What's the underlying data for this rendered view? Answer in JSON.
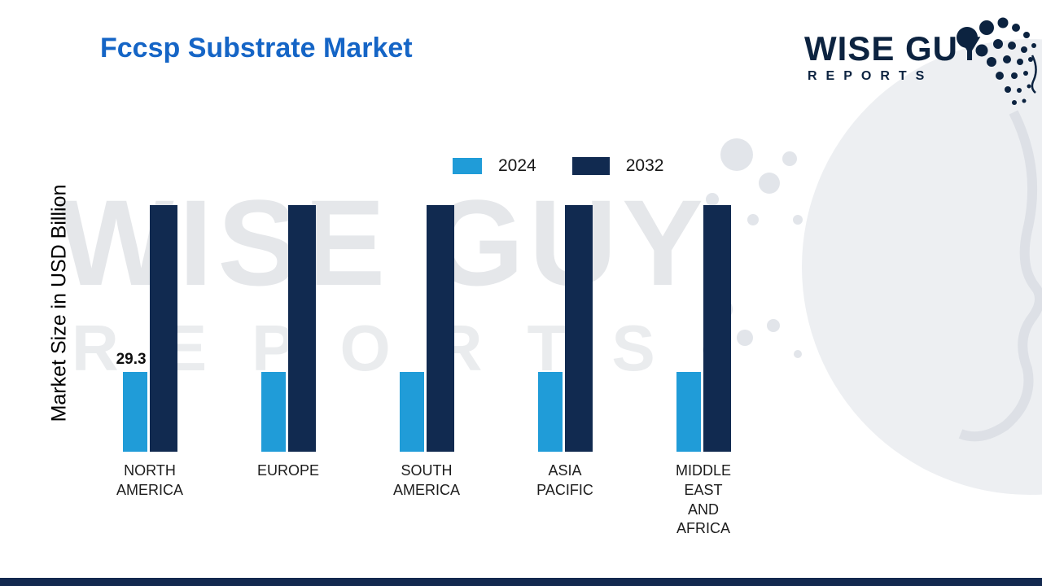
{
  "page": {
    "title": "Fccsp Substrate Market"
  },
  "logo": {
    "name": "WISE GUY",
    "sub": "REPORTS"
  },
  "watermark": {
    "name": "WISE GUY",
    "sub": "REPORTS"
  },
  "legend": [
    {
      "label": "2024",
      "color": "#209cd8"
    },
    {
      "label": "2032",
      "color": "#112a50"
    }
  ],
  "chart_data": {
    "type": "bar",
    "title": "Fccsp Substrate Market",
    "ylabel": "Market Size in USD Billion",
    "categories": [
      "NORTH AMERICA",
      "EUROPE",
      "SOUTH AMERICA",
      "ASIA PACIFIC",
      "MIDDLE EAST AND AFRICA"
    ],
    "category_display_lines": [
      [
        "NORTH",
        "AMERICA"
      ],
      [
        "EUROPE"
      ],
      [
        "SOUTH",
        "AMERICA"
      ],
      [
        "ASIA",
        "PACIFIC"
      ],
      [
        "MIDDLE",
        "EAST",
        "AND",
        "AFRICA"
      ]
    ],
    "series": [
      {
        "name": "2024",
        "color": "#209cd8",
        "values": [
          29.3,
          29.3,
          29.3,
          29.3,
          29.3
        ]
      },
      {
        "name": "2032",
        "color": "#112a50",
        "values": [
          90.6,
          90.6,
          90.6,
          90.6,
          90.6
        ]
      }
    ],
    "visible_value_labels": [
      {
        "series": "2024",
        "category": "NORTH AMERICA",
        "text": "29.3"
      }
    ],
    "legend_position": "top-center",
    "grid": false,
    "ylim": [
      0,
      95
    ]
  },
  "colors": {
    "title_blue": "#1565c6",
    "bar_2024": "#209cd8",
    "bar_2032": "#112a50",
    "logo_navy": "#0c2340",
    "footer_navy": "#13294f",
    "watermark_gray": "#ccd0d6"
  }
}
